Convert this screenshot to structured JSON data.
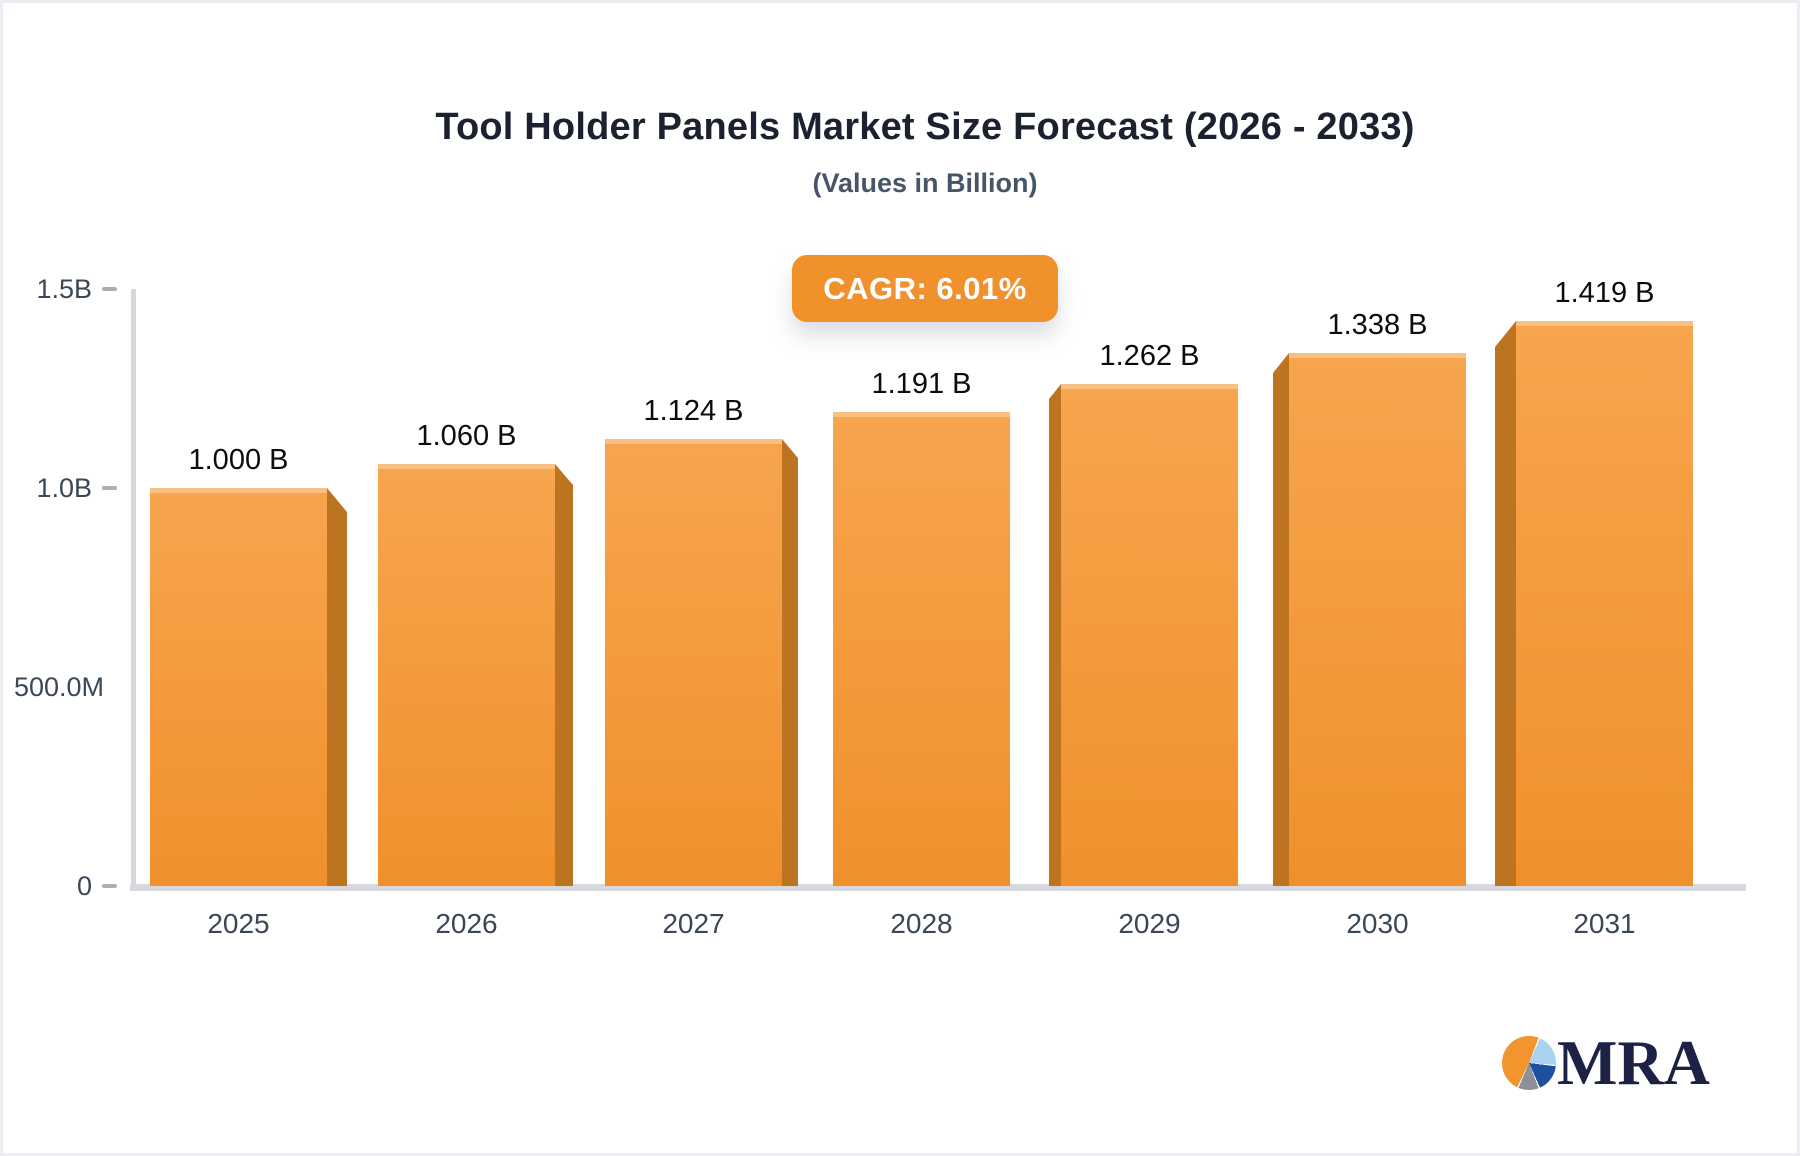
{
  "title": "Tool Holder Panels Market Size Forecast (2026 - 2033)",
  "subtitle": "(Values in Billion)",
  "badge": {
    "label": "CAGR: 6.01%"
  },
  "logo": {
    "text": "MRA"
  },
  "chart_data": {
    "type": "bar",
    "title": "Tool Holder Panels Market Size Forecast (2026 - 2033)",
    "subtitle": "(Values in Billion)",
    "categories": [
      "2025",
      "2026",
      "2027",
      "2028",
      "2029",
      "2030",
      "2031"
    ],
    "values": [
      1.0,
      1.06,
      1.124,
      1.191,
      1.262,
      1.338,
      1.419
    ],
    "value_labels": [
      "1.000 B",
      "1.060 B",
      "1.124 B",
      "1.191 B",
      "1.262 B",
      "1.338 B",
      "1.419 B"
    ],
    "unit": "Billion",
    "xlabel": "",
    "ylabel": "",
    "ylim": [
      0,
      1.5
    ],
    "yticks": [
      {
        "label": "1.5B",
        "value": 1.5,
        "tick": true
      },
      {
        "label": "1.0B",
        "value": 1.0,
        "tick": true
      },
      {
        "label": "500.0M",
        "value": 0.5,
        "tick": false
      },
      {
        "label": "0",
        "value": 0.0,
        "tick": true
      }
    ],
    "grid": false,
    "legend": "none",
    "cagr": "6.01%"
  },
  "colors": {
    "bar_face_top": "#f7a54e",
    "bar_face_bottom": "#f0902c",
    "bar_side": "#bd7420",
    "badge_bg": "#f1912c",
    "badge_text": "#ffffff",
    "axis_line": "#d6d7dd",
    "baseline": "#d8d9de"
  }
}
